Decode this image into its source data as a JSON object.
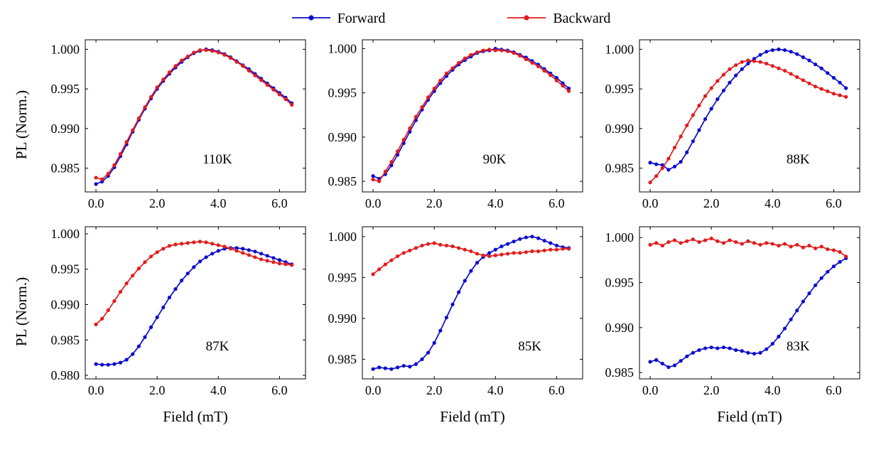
{
  "chart_data": {
    "type": "line",
    "title": "",
    "xlabel": "Field (mT)",
    "ylabel": "PL (Norm.)",
    "xlim": [
      -0.35,
      6.85
    ],
    "xticks": [
      0,
      2,
      4,
      6
    ],
    "xtick_labels": [
      "0.0",
      "2.0",
      "4.0",
      "6.0"
    ],
    "legend_position": "top-center",
    "grid": false,
    "legend": [
      {
        "label": "Forward",
        "color": "#0b0bd0"
      },
      {
        "label": "Backward",
        "color": "#e31b1b"
      }
    ],
    "x": [
      0.0,
      0.2,
      0.4,
      0.6,
      0.8,
      1.0,
      1.2,
      1.4,
      1.6,
      1.8,
      2.0,
      2.2,
      2.4,
      2.6,
      2.8,
      3.0,
      3.2,
      3.4,
      3.6,
      3.8,
      4.0,
      4.2,
      4.4,
      4.6,
      4.8,
      5.0,
      5.2,
      5.4,
      5.6,
      5.8,
      6.0,
      6.2,
      6.4
    ],
    "panels": [
      {
        "label": "110K",
        "label_rx": 0.6,
        "label_ry": 0.78,
        "ylim": [
          0.982,
          1.0012
        ],
        "yticks": [
          0.985,
          0.99,
          0.995,
          1.0
        ],
        "forward": [
          0.983,
          0.9833,
          0.984,
          0.9851,
          0.9865,
          0.988,
          0.9896,
          0.9911,
          0.9925,
          0.9938,
          0.995,
          0.996,
          0.9969,
          0.9977,
          0.9984,
          0.999,
          0.9995,
          0.9998,
          1.0,
          0.9999,
          0.9997,
          0.9994,
          0.999,
          0.9985,
          0.998,
          0.9975,
          0.9969,
          0.9963,
          0.9957,
          0.9951,
          0.9945,
          0.9939,
          0.9932
        ],
        "backward": [
          0.9838,
          0.9836,
          0.9843,
          0.9854,
          0.9868,
          0.9883,
          0.9898,
          0.9913,
          0.9927,
          0.994,
          0.9952,
          0.9962,
          0.9971,
          0.9979,
          0.9986,
          0.9991,
          0.9996,
          0.9999,
          0.9999,
          0.9998,
          0.9996,
          0.9993,
          0.9989,
          0.9984,
          0.9979,
          0.9973,
          0.9967,
          0.9961,
          0.9955,
          0.9949,
          0.9943,
          0.9937,
          0.993
        ]
      },
      {
        "label": "90K",
        "label_rx": 0.6,
        "label_ry": 0.78,
        "ylim": [
          0.9838,
          1.001
        ],
        "yticks": [
          0.985,
          0.99,
          0.995,
          1.0
        ],
        "forward": [
          0.9856,
          0.9853,
          0.9858,
          0.9868,
          0.988,
          0.9893,
          0.9906,
          0.9919,
          0.9931,
          0.9942,
          0.9952,
          0.9961,
          0.9969,
          0.9976,
          0.9982,
          0.9987,
          0.9991,
          0.9995,
          0.9997,
          0.9998,
          1.0,
          0.9999,
          0.9998,
          0.9996,
          0.9993,
          0.999,
          0.9986,
          0.9982,
          0.9977,
          0.9972,
          0.9967,
          0.9961,
          0.9955
        ],
        "backward": [
          0.9852,
          0.985,
          0.9861,
          0.9872,
          0.9884,
          0.9897,
          0.991,
          0.9923,
          0.9934,
          0.9945,
          0.9955,
          0.9964,
          0.9972,
          0.9978,
          0.9984,
          0.9989,
          0.9993,
          0.9996,
          0.9998,
          0.9999,
          0.9998,
          0.9998,
          0.9997,
          0.9995,
          0.9992,
          0.9988,
          0.9984,
          0.998,
          0.9975,
          0.997,
          0.9964,
          0.9958,
          0.9952
        ]
      },
      {
        "label": "88K",
        "label_rx": 0.72,
        "label_ry": 0.78,
        "ylim": [
          0.982,
          1.0012
        ],
        "yticks": [
          0.985,
          0.99,
          0.995,
          1.0
        ],
        "forward": [
          0.9857,
          0.9855,
          0.9854,
          0.9848,
          0.9852,
          0.9858,
          0.987,
          0.9884,
          0.9898,
          0.9912,
          0.9925,
          0.9937,
          0.9948,
          0.9958,
          0.9967,
          0.9975,
          0.9982,
          0.9988,
          0.9993,
          0.9997,
          0.9999,
          1.0,
          0.9999,
          0.9997,
          0.9994,
          0.999,
          0.9986,
          0.9981,
          0.9976,
          0.997,
          0.9964,
          0.9958,
          0.9951
        ],
        "backward": [
          0.9832,
          0.984,
          0.985,
          0.9862,
          0.9876,
          0.989,
          0.9904,
          0.9917,
          0.9929,
          0.9941,
          0.9951,
          0.996,
          0.9968,
          0.9975,
          0.998,
          0.9984,
          0.9986,
          0.9985,
          0.9984,
          0.9982,
          0.9979,
          0.9976,
          0.9973,
          0.9969,
          0.9965,
          0.9961,
          0.9957,
          0.9953,
          0.995,
          0.9947,
          0.9944,
          0.9942,
          0.994
        ]
      },
      {
        "label": "87K",
        "label_rx": 0.6,
        "label_ry": 0.78,
        "ylim": [
          0.9795,
          1.001
        ],
        "yticks": [
          0.98,
          0.985,
          0.99,
          0.995,
          1.0
        ],
        "forward": [
          0.9816,
          0.9815,
          0.9815,
          0.9816,
          0.9818,
          0.9822,
          0.983,
          0.9841,
          0.9854,
          0.9868,
          0.9882,
          0.9896,
          0.991,
          0.9922,
          0.9934,
          0.9944,
          0.9953,
          0.9961,
          0.9967,
          0.9972,
          0.9976,
          0.9979,
          0.998,
          0.998,
          0.9979,
          0.9977,
          0.9975,
          0.9972,
          0.9969,
          0.9966,
          0.9963,
          0.996,
          0.9957
        ],
        "backward": [
          0.9872,
          0.988,
          0.9892,
          0.9905,
          0.9918,
          0.993,
          0.9941,
          0.9951,
          0.996,
          0.9968,
          0.9974,
          0.9979,
          0.9983,
          0.9985,
          0.9986,
          0.9987,
          0.9988,
          0.9989,
          0.9988,
          0.9986,
          0.9984,
          0.9982,
          0.9979,
          0.9976,
          0.9973,
          0.997,
          0.9967,
          0.9964,
          0.9962,
          0.996,
          0.9958,
          0.9957,
          0.9956
        ]
      },
      {
        "label": "85K",
        "label_rx": 0.76,
        "label_ry": 0.78,
        "ylim": [
          0.9826,
          1.0012
        ],
        "yticks": [
          0.985,
          0.99,
          0.995,
          1.0
        ],
        "forward": [
          0.9838,
          0.984,
          0.9839,
          0.9838,
          0.984,
          0.9842,
          0.9841,
          0.9844,
          0.985,
          0.9858,
          0.987,
          0.9885,
          0.9901,
          0.9917,
          0.9932,
          0.9946,
          0.9958,
          0.9968,
          0.9975,
          0.998,
          0.9984,
          0.9988,
          0.9991,
          0.9994,
          0.9997,
          0.9999,
          1.0,
          0.9998,
          0.9995,
          0.9992,
          0.9989,
          0.9987,
          0.9986
        ],
        "backward": [
          0.9954,
          0.996,
          0.9966,
          0.9971,
          0.9976,
          0.998,
          0.9983,
          0.9986,
          0.9989,
          0.9991,
          0.9992,
          0.999,
          0.9989,
          0.9988,
          0.9986,
          0.9984,
          0.9982,
          0.9979,
          0.9977,
          0.9976,
          0.9977,
          0.9978,
          0.9979,
          0.998,
          0.998,
          0.9981,
          0.9982,
          0.9982,
          0.9983,
          0.9984,
          0.9984,
          0.9985,
          0.9985
        ]
      },
      {
        "label": "83K",
        "label_rx": 0.72,
        "label_ry": 0.78,
        "ylim": [
          0.9843,
          1.0012
        ],
        "yticks": [
          0.985,
          0.99,
          0.995,
          1.0
        ],
        "forward": [
          0.9862,
          0.9864,
          0.986,
          0.9856,
          0.9858,
          0.9863,
          0.9868,
          0.9872,
          0.9875,
          0.9877,
          0.9878,
          0.9877,
          0.9878,
          0.9877,
          0.9875,
          0.9874,
          0.9872,
          0.9871,
          0.9872,
          0.9876,
          0.9882,
          0.989,
          0.9899,
          0.9909,
          0.9919,
          0.9929,
          0.9938,
          0.9947,
          0.9955,
          0.9962,
          0.9968,
          0.9973,
          0.9977
        ],
        "backward": [
          0.9992,
          0.9994,
          0.9991,
          0.9995,
          0.9997,
          0.9994,
          0.9996,
          0.9998,
          0.9995,
          0.9997,
          0.9999,
          0.9996,
          0.9994,
          0.9997,
          0.9995,
          0.9993,
          0.9996,
          0.9994,
          0.9992,
          0.9994,
          0.9993,
          0.9991,
          0.9993,
          0.999,
          0.9992,
          0.9989,
          0.9991,
          0.9988,
          0.999,
          0.9987,
          0.9986,
          0.9984,
          0.9979
        ]
      }
    ]
  }
}
